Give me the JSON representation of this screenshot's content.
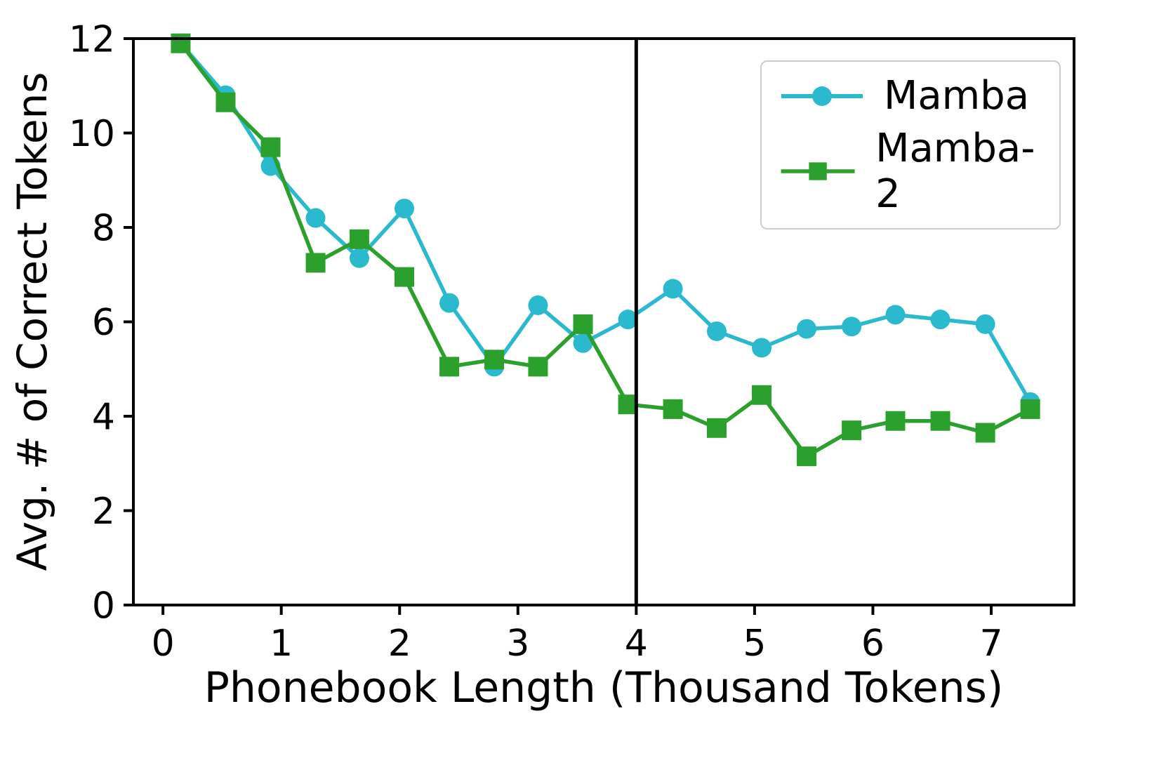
{
  "chart_data": {
    "type": "line",
    "title": "",
    "xlabel": "Phonebook Length (Thousand Tokens)",
    "ylabel": "Avg. # of Correct Tokens",
    "xlim": [
      -0.25,
      7.7
    ],
    "ylim": [
      0,
      12
    ],
    "xticks": [
      0,
      1,
      2,
      3,
      4,
      5,
      6,
      7
    ],
    "yticks": [
      0,
      2,
      4,
      6,
      8,
      10,
      12
    ],
    "grid": false,
    "legend_position": "top-right",
    "vline": {
      "x": 4,
      "color": "#000000"
    },
    "x": [
      0.15,
      0.53,
      0.91,
      1.29,
      1.66,
      2.04,
      2.42,
      2.8,
      3.17,
      3.55,
      3.93,
      4.31,
      4.68,
      5.06,
      5.44,
      5.82,
      6.19,
      6.57,
      6.95,
      7.33
    ],
    "series": [
      {
        "name": "Mamba",
        "color": "#2bb9ce",
        "marker": "circle",
        "values": [
          11.9,
          10.8,
          9.3,
          8.2,
          7.35,
          8.4,
          6.4,
          5.05,
          6.35,
          5.55,
          6.05,
          6.7,
          5.8,
          5.45,
          5.85,
          5.9,
          6.15,
          6.05,
          5.95,
          4.3
        ]
      },
      {
        "name": "Mamba-2",
        "color": "#2ca02c",
        "marker": "square",
        "values": [
          11.9,
          10.65,
          9.7,
          7.25,
          7.75,
          6.95,
          5.05,
          5.2,
          5.05,
          5.95,
          4.25,
          4.15,
          3.75,
          4.45,
          3.15,
          3.7,
          3.9,
          3.9,
          3.65,
          4.15
        ]
      }
    ]
  }
}
